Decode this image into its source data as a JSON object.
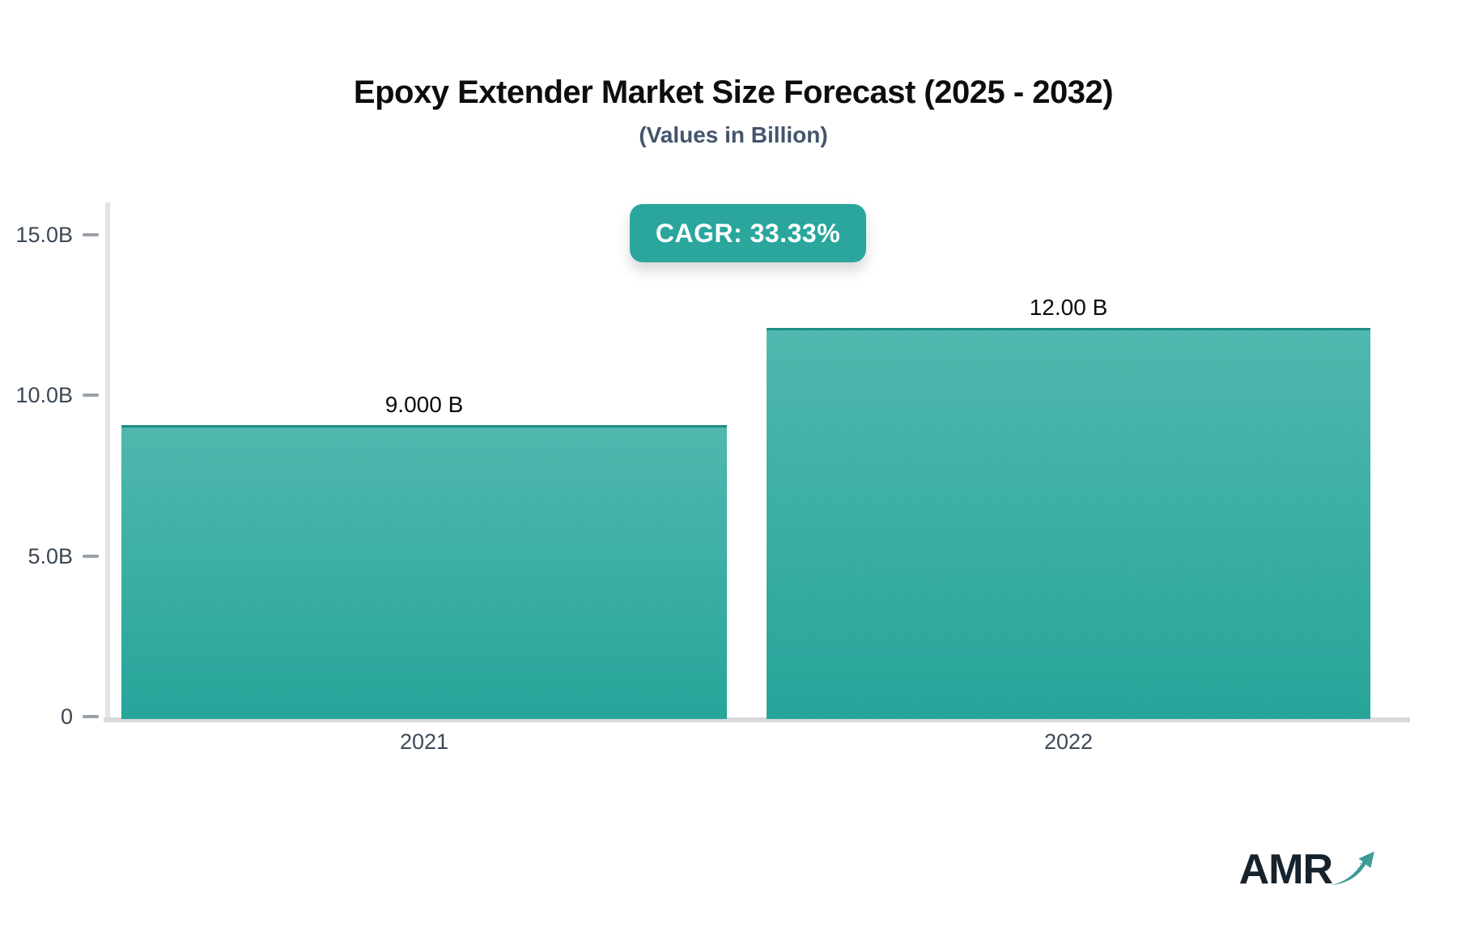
{
  "header": {
    "title": "Epoxy Extender Market Size Forecast (2025 - 2032)",
    "subtitle": "(Values in Billion)"
  },
  "cagr_badge": {
    "label": "CAGR: 33.33%",
    "background": "#2aa69d",
    "text_color": "#ffffff"
  },
  "chart_data": {
    "type": "bar",
    "categories": [
      "2021",
      "2022"
    ],
    "values": [
      9.0,
      12.0
    ],
    "value_labels": [
      "9.000 B",
      "12.00 B"
    ],
    "series_unit": "Billion",
    "title": "Epoxy Extender Market Size Forecast (2025 - 2032)",
    "subtitle": "(Values in Billion)",
    "xlabel": "",
    "ylabel": "",
    "ylim": [
      0,
      15
    ],
    "yticks": [
      {
        "value": 15,
        "label": "15.0B"
      },
      {
        "value": 10,
        "label": "10.0B"
      },
      {
        "value": 5,
        "label": "5.0B"
      },
      {
        "value": 0,
        "label": "0"
      }
    ],
    "grid": false,
    "legend": "none",
    "bar_color_top": "#50b8af",
    "bar_color_bottom": "#27a59a",
    "bar_border_color": "#1e8e85",
    "axis_color": "#d8d9dd"
  },
  "logo": {
    "text": "AMR",
    "text_color": "#16222c",
    "arrow_color": "#3f9e96"
  }
}
